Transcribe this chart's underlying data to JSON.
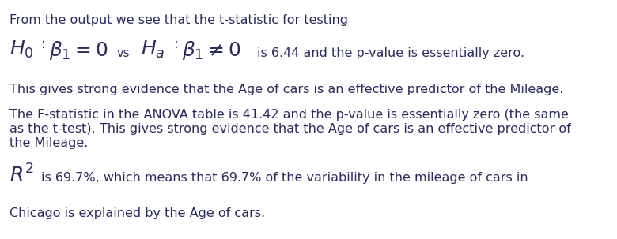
{
  "bg_color": "#ffffff",
  "text_color": "#2b2b5e",
  "line1": "From the output we see that the t-statistic for testing",
  "line3_suffix": "is 6.44 and the p-value is essentially zero.",
  "line4": "This gives strong evidence that the Age of cars is an effective predictor of the Mileage.",
  "line5": "The F-statistic in the ANOVA table is 41.42 and the p-value is essentially zero (the same",
  "line6": "as the t-test). This gives strong evidence that the Age of cars is an effective predictor of",
  "line7": "the Mileage.",
  "line9_suffix": "is 69.7%, which means that 69.7% of the variability in the mileage of cars in",
  "line10": "Chicago is explained by the Age of cars.",
  "fs": 11.5,
  "fs_math": 18,
  "fs_vs": 10.5
}
